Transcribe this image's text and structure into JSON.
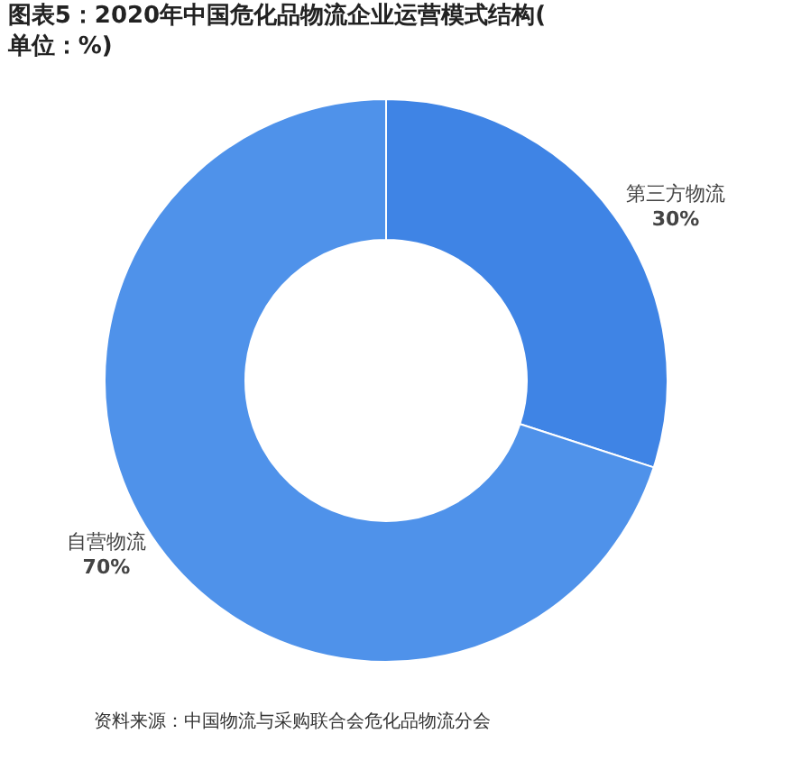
{
  "chart_data": {
    "type": "donut",
    "title": "图表5：2020年中国危化品物流企业运营模式结构(单位：%)",
    "categories": [
      "第三方物流",
      "自营物流"
    ],
    "values": [
      30,
      70
    ],
    "value_labels": [
      "30%",
      "70%"
    ],
    "colors": [
      "#3f84e5",
      "#4f92ea"
    ],
    "legend": false,
    "annotations": [
      "资料来源：中国物流与采购联合会危化品物流分会"
    ]
  }
}
